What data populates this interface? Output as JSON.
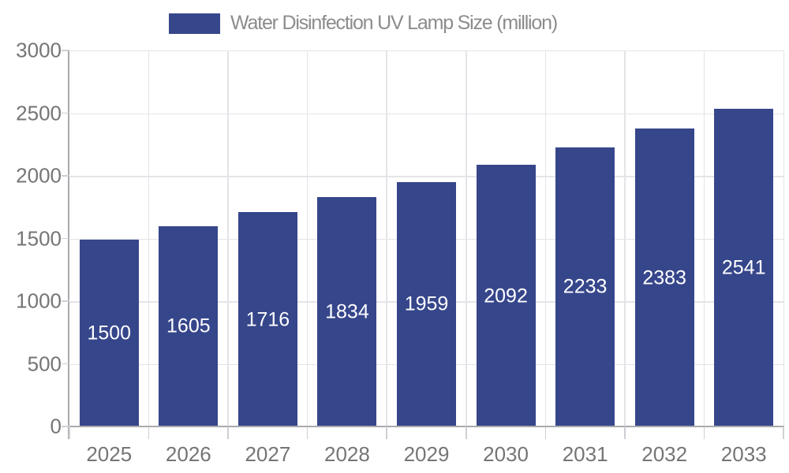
{
  "legend": {
    "label": "Water Disinfection UV Lamp Size (million)"
  },
  "chart_data": {
    "type": "bar",
    "title": "Water Disinfection UV Lamp Size (million)",
    "categories": [
      "2025",
      "2026",
      "2027",
      "2028",
      "2029",
      "2030",
      "2031",
      "2032",
      "2033"
    ],
    "series": [
      {
        "name": "Water Disinfection UV Lamp Size (million)",
        "values": [
          1500,
          1605,
          1716,
          1834,
          1959,
          2092,
          2233,
          2383,
          2541
        ]
      }
    ],
    "xlabel": "",
    "ylabel": "",
    "ylim": [
      0,
      3000
    ],
    "y_ticks": [
      0,
      500,
      1000,
      1500,
      2000,
      2500,
      3000
    ],
    "grid": true,
    "legend_position": "top",
    "bar_value_labels_visible": true,
    "colors": {
      "bar": "#36468B",
      "bar_label": "#ffffff",
      "axis_text": "#757575",
      "legend_text": "#8c8c8c",
      "grid": "#e4e4e9",
      "axis_line": "#a9a9ad",
      "tick": "#cfcfd4",
      "background": "#ffffff"
    }
  }
}
